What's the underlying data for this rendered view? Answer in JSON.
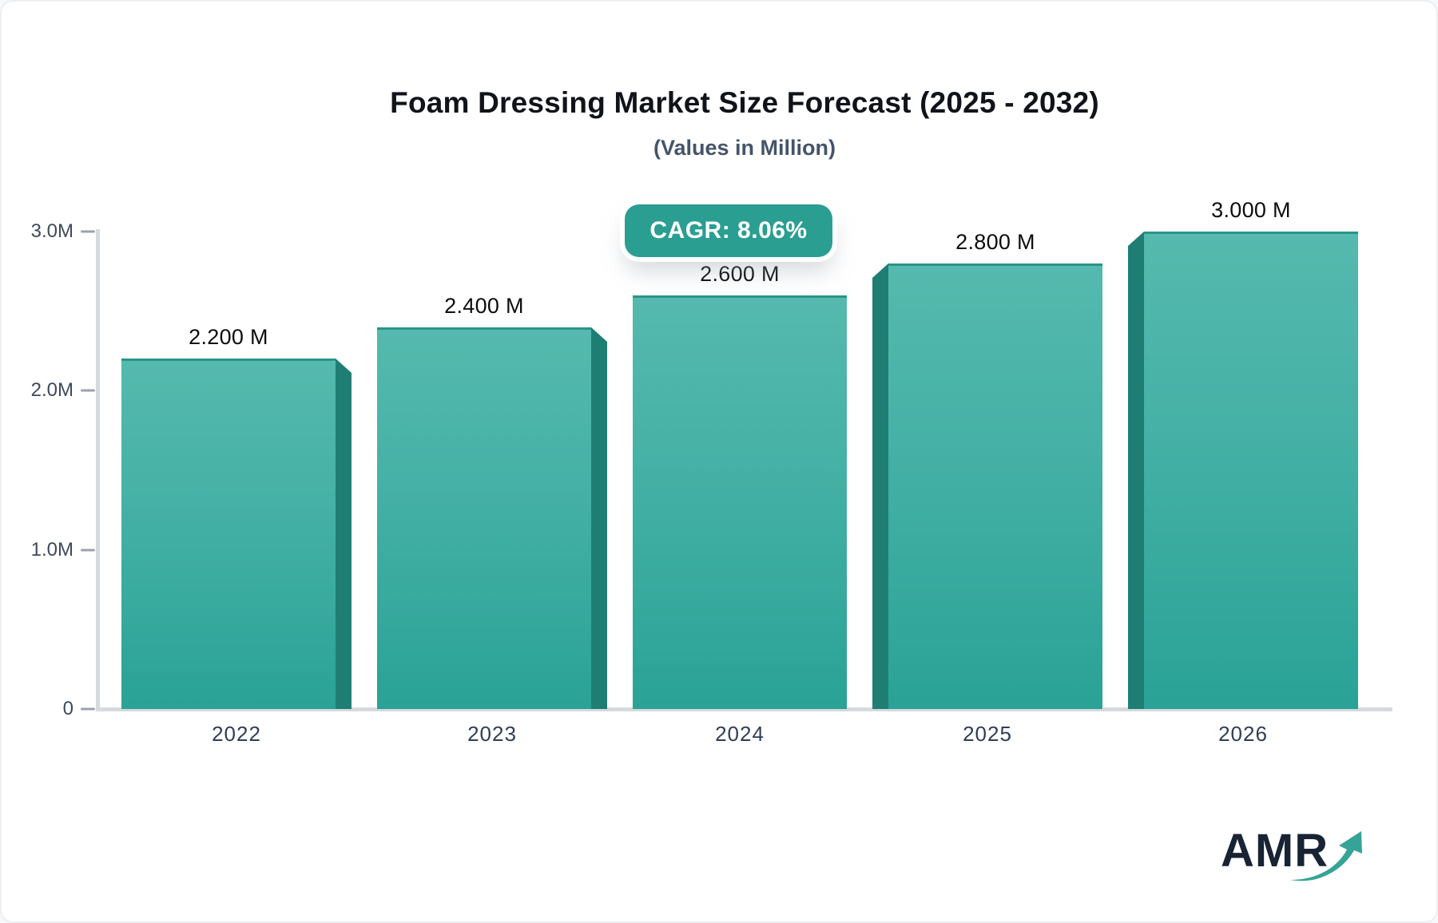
{
  "header": {
    "title": "Foam Dressing Market Size Forecast (2025 - 2032)",
    "subtitle": "(Values in Million)"
  },
  "cagr_badge": "CAGR: 8.06%",
  "chart_data": {
    "type": "bar",
    "title": "Foam Dressing Market Size Forecast (2025 - 2032)",
    "subtitle": "(Values in Million)",
    "unit": "Million",
    "categories": [
      "2022",
      "2023",
      "2024",
      "2025",
      "2026"
    ],
    "values": [
      2.2,
      2.4,
      2.6,
      2.8,
      3.0
    ],
    "value_labels": [
      "2.200 M",
      "2.400 M",
      "2.600 M",
      "2.800 M",
      "3.000 M"
    ],
    "cagr_label": "CAGR: 8.06%",
    "cagr_percent": 8.06,
    "ylim": [
      0,
      3.0
    ],
    "ytick_labels": [
      "3.0M",
      "2.0M",
      "1.0M",
      "0"
    ],
    "grid": false,
    "legend": "none",
    "bar_face_color_top": "#52b7ac",
    "bar_face_color_bottom": "#29a295",
    "bar_side_color": "#1f7e74",
    "axis_color": "#d6d9de",
    "badge_color": "#2b9e92"
  },
  "logo": {
    "text": "AMR",
    "arrow_color": "#35a496"
  }
}
